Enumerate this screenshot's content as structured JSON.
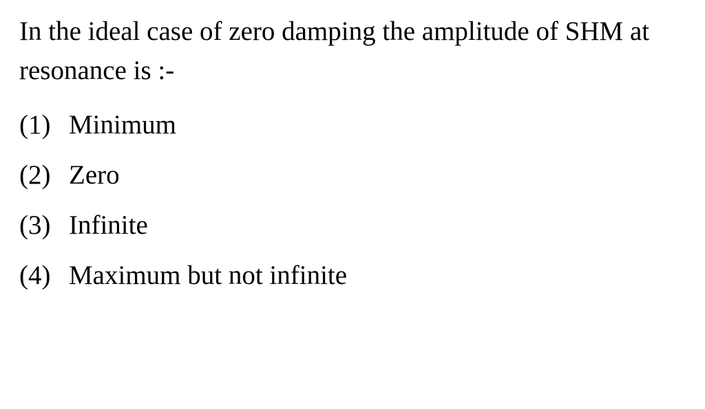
{
  "question": {
    "text": "In the ideal case of zero damping the amplitude of SHM at resonance is :-"
  },
  "options": [
    {
      "number": "(1)",
      "text": "Minimum"
    },
    {
      "number": "(2)",
      "text": "Zero"
    },
    {
      "number": "(3)",
      "text": "Infinite"
    },
    {
      "number": "(4)",
      "text": "Maximum but not infinite"
    }
  ],
  "styling": {
    "font_family": "Times New Roman",
    "font_size_pt": 29,
    "text_color": "#000000",
    "background_color": "#ffffff",
    "line_height": 1.45
  }
}
